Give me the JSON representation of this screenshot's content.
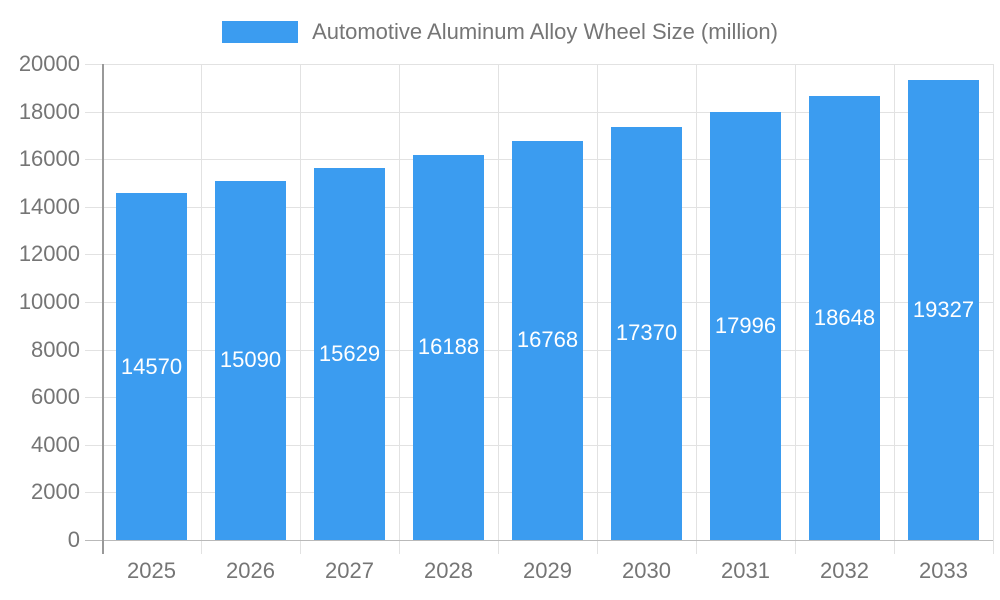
{
  "legend": {
    "label": "Automotive Aluminum Alloy Wheel Size (million)"
  },
  "chart_data": {
    "type": "bar",
    "title": "Automotive Aluminum Alloy Wheel Size (million)",
    "categories": [
      "2025",
      "2026",
      "2027",
      "2028",
      "2029",
      "2030",
      "2031",
      "2032",
      "2033"
    ],
    "values": [
      14570,
      15090,
      15629,
      16188,
      16768,
      17370,
      17996,
      18648,
      19327
    ],
    "xlabel": "",
    "ylabel": "",
    "ylim": [
      0,
      20000
    ],
    "ytick_step": 2000,
    "ytick_labels": [
      "0",
      "2000",
      "4000",
      "6000",
      "8000",
      "10000",
      "12000",
      "14000",
      "16000",
      "18000",
      "20000"
    ],
    "grid": true,
    "legend_position": "top-center",
    "colors": {
      "bar": "#3B9CF0",
      "bar_value_text": "#ffffff",
      "axis_text": "#757575",
      "gridline": "#e2e2e2",
      "baseline": "#b9b9b9",
      "axis_line": "#999999",
      "background": "#ffffff"
    }
  }
}
